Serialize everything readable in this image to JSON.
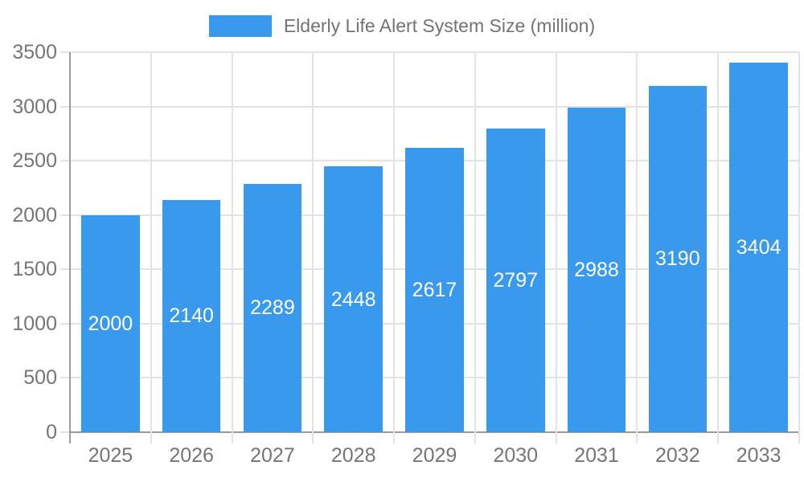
{
  "chart": {
    "legend": {
      "label": "Elderly Life Alert System Size (million)",
      "position": "top"
    }
  },
  "chart_data": {
    "type": "bar",
    "title": "Elderly Life Alert System Size (million)",
    "categories": [
      "2025",
      "2026",
      "2027",
      "2028",
      "2029",
      "2030",
      "2031",
      "2032",
      "2033"
    ],
    "values": [
      2000,
      2140,
      2289,
      2448,
      2617,
      2797,
      2988,
      3190,
      3404
    ],
    "series_name": "Elderly Life Alert System Size (million)",
    "xlabel": "",
    "ylabel": "",
    "ylim": [
      0,
      3500
    ],
    "yticks": [
      0,
      500,
      1000,
      1500,
      2000,
      2500,
      3000,
      3500
    ],
    "grid": true,
    "legend_position": "top",
    "bar_label_color": "#ffffff",
    "colors": {
      "bar": "#3999ED",
      "grid": "#e3e3e3",
      "axis": "#9b9b9b",
      "tick_text": "#757575",
      "legend_text": "#737373",
      "background": "#ffffff"
    }
  }
}
